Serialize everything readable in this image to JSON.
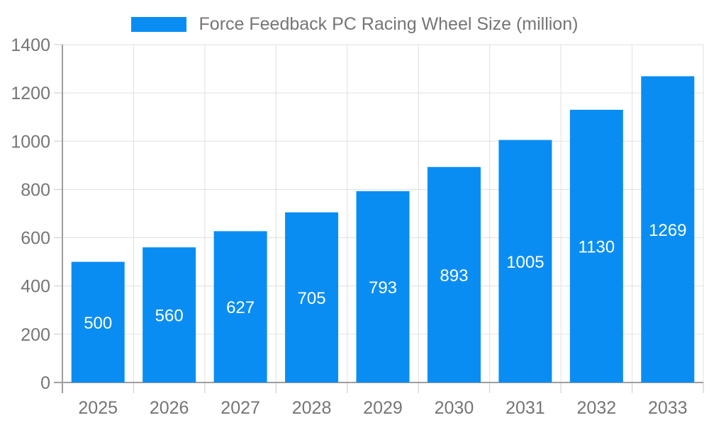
{
  "chart_data": {
    "type": "bar",
    "title": "Force Feedback PC Racing Wheel Size (million)",
    "series": [
      {
        "name": "Force Feedback PC Racing Wheel Size (million)",
        "values": [
          500,
          560,
          627,
          705,
          793,
          893,
          1005,
          1130,
          1269
        ]
      }
    ],
    "categories": [
      "2025",
      "2026",
      "2027",
      "2028",
      "2029",
      "2030",
      "2031",
      "2032",
      "2033"
    ],
    "xlabel": "",
    "ylabel": "",
    "ylim": [
      0,
      1400
    ],
    "yticks": [
      0,
      200,
      400,
      600,
      800,
      1000,
      1200,
      1400
    ],
    "grid": true,
    "legend_position": "top",
    "value_label_position": "inside-center",
    "colors": {
      "bar": "#0a8df2",
      "axis_text": "#757575",
      "value_label": "#ffffff",
      "gridline": "#e0e0e0",
      "axis_line": "#9e9e9e",
      "tick": "#c8c8c8",
      "background": "#ffffff"
    }
  }
}
